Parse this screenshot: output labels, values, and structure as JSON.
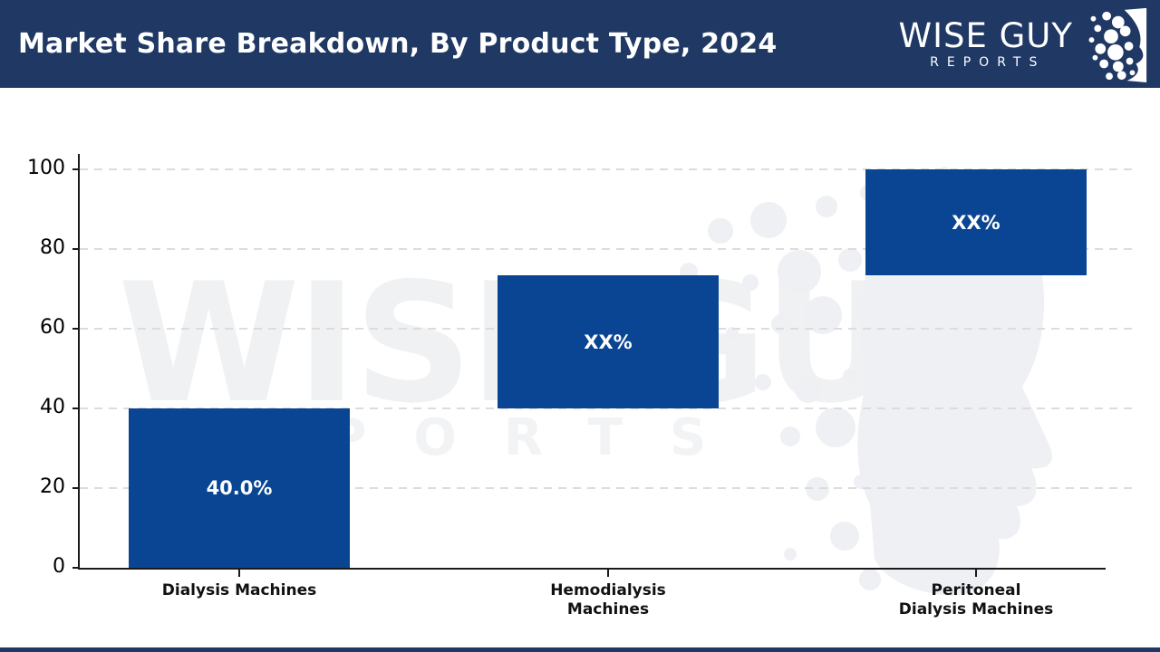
{
  "header": {
    "title": "Market Share Breakdown, By Product Type, 2024",
    "logo": {
      "name": "WISE GUY",
      "sub": "REPORTS"
    }
  },
  "watermark": {
    "big": "WISE GUY",
    "sub": "REPORTS"
  },
  "chart_data": {
    "type": "bar",
    "variant": "waterfall",
    "title": "Market Share Breakdown, By Product Type, 2024",
    "categories": [
      "Dialysis Machines",
      "Hemodialysis Machines",
      "Peritoneal Dialysis Machines"
    ],
    "category_lines": [
      [
        "Dialysis Machines"
      ],
      [
        "Hemodialysis",
        "Machines"
      ],
      [
        "Peritoneal",
        "Dialysis Machines"
      ]
    ],
    "segments": [
      {
        "category": "Dialysis Machines",
        "start": 0,
        "end": 40,
        "label": "40.0%"
      },
      {
        "category": "Hemodialysis Machines",
        "start": 40,
        "end": 73.3,
        "label": "XX%"
      },
      {
        "category": "Peritoneal Dialysis Machines",
        "start": 73.3,
        "end": 100,
        "label": "XX%"
      }
    ],
    "yticks": [
      0,
      20,
      40,
      60,
      80,
      100
    ],
    "ylim": [
      0,
      105
    ],
    "xlabel": "",
    "ylabel": "",
    "grid": "horizontal-dashed",
    "legend": "none",
    "colors": {
      "bar": "#0a4593",
      "header_bg": "#1f3864",
      "grid": "#dcdcdc",
      "axis": "#1a1a1a",
      "label_on_bar": "#ffffff",
      "watermark": "#f0f1f3"
    }
  },
  "footer": {
    "bar_color": "#1f3864"
  }
}
